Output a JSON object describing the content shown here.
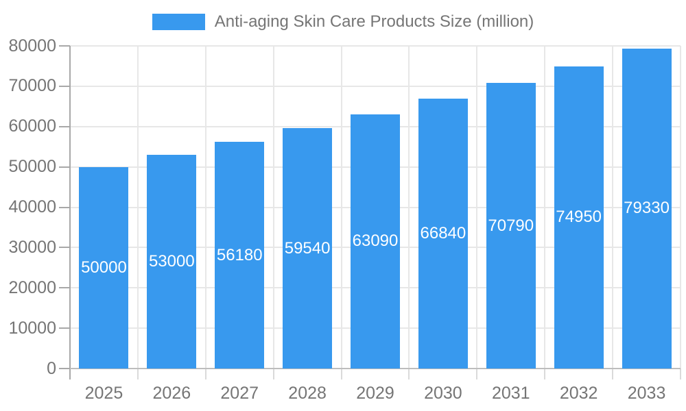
{
  "chart_data": {
    "type": "bar",
    "title": "Anti-aging Skin Care Products Size (million)",
    "categories": [
      "2025",
      "2026",
      "2027",
      "2028",
      "2029",
      "2030",
      "2031",
      "2032",
      "2033"
    ],
    "series": [
      {
        "name": "Anti-aging Skin Care Products Size (million)",
        "values": [
          50000,
          53000,
          56180,
          59540,
          63090,
          66840,
          70790,
          74950,
          79330
        ]
      }
    ],
    "value_labels": [
      "50000",
      "53000",
      "56180",
      "59540",
      "63090",
      "66840",
      "70790",
      "74950",
      "79330"
    ],
    "xlabel": "",
    "ylabel": "",
    "ylim": [
      0,
      80000
    ],
    "ytick_step": 10000,
    "ytick_labels": [
      "0",
      "10000",
      "20000",
      "30000",
      "40000",
      "50000",
      "60000",
      "70000",
      "80000"
    ],
    "grid": true,
    "legend_position": "top",
    "value_label_position": "inside-center",
    "colors": {
      "bar": "#3899EE",
      "grid": "#E7E7E7",
      "axis_line": "#A8A8A8",
      "x_axis_line": "#BDBDBD",
      "x_tick": "#DADADA",
      "text": "#757575",
      "value_text": "#FFFFFF",
      "background": "#FFFFFF"
    }
  }
}
